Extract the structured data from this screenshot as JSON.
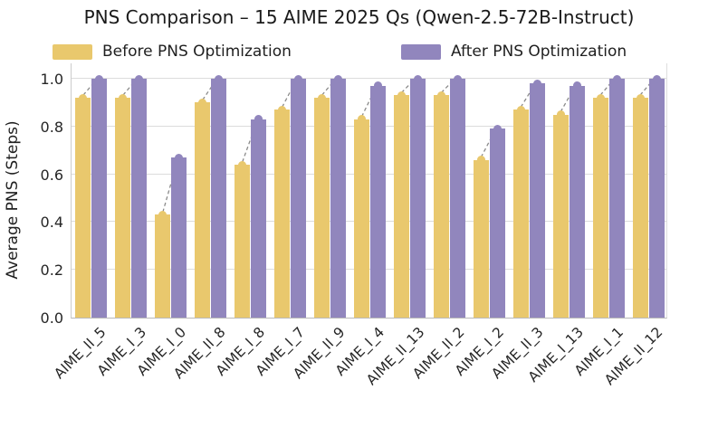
{
  "window": {
    "title": "PNS Comparison – 15 AIME 2025 Qs (Qwen-2.5-72B-Instruct)"
  },
  "colors": {
    "before_series": "#E9C86D",
    "after_series": "#9186BD",
    "connector": "#8a8a8a",
    "grid": "#dcdcdc",
    "text": "#262626",
    "background": "#ffffff"
  },
  "chart_data": {
    "type": "bar",
    "title": "PNS Comparison – 15 AIME 2025 Qs (Qwen-2.5-72B-Instruct)",
    "xlabel": "",
    "ylabel": "Average PNS (Steps)",
    "ylim": [
      0.0,
      1.07
    ],
    "yticks": [
      0.0,
      0.2,
      0.4,
      0.6,
      0.8,
      1.0
    ],
    "grid": true,
    "legend_position": "top",
    "x_tick_rotation_deg": 45,
    "categories": [
      "AIME_II_5",
      "AIME_I_3",
      "AIME_I_0",
      "AIME_II_8",
      "AIME_I_8",
      "AIME_I_7",
      "AIME_II_9",
      "AIME_I_4",
      "AIME_II_13",
      "AIME_II_2",
      "AIME_I_2",
      "AIME_II_3",
      "AIME_I_13",
      "AIME_I_1",
      "AIME_II_12"
    ],
    "series": [
      {
        "name": "Before PNS Optimization",
        "color": "#E9C86D",
        "values": [
          0.92,
          0.92,
          0.43,
          0.9,
          0.64,
          0.87,
          0.92,
          0.83,
          0.93,
          0.93,
          0.66,
          0.87,
          0.85,
          0.92,
          0.92
        ]
      },
      {
        "name": "After PNS Optimization",
        "color": "#9186BD",
        "values": [
          1.0,
          1.0,
          0.67,
          1.0,
          0.83,
          1.0,
          1.0,
          0.97,
          1.0,
          1.0,
          0.79,
          0.98,
          0.97,
          1.0,
          1.0
        ]
      }
    ],
    "annotations": {
      "bar_top_markers": "small circular cap, same color as bar, centered on each bar top",
      "pair_connectors": "gray dashed line from before-bar top marker to after-bar top marker in every category pair",
      "connector_color": "#8a8a8a"
    }
  }
}
